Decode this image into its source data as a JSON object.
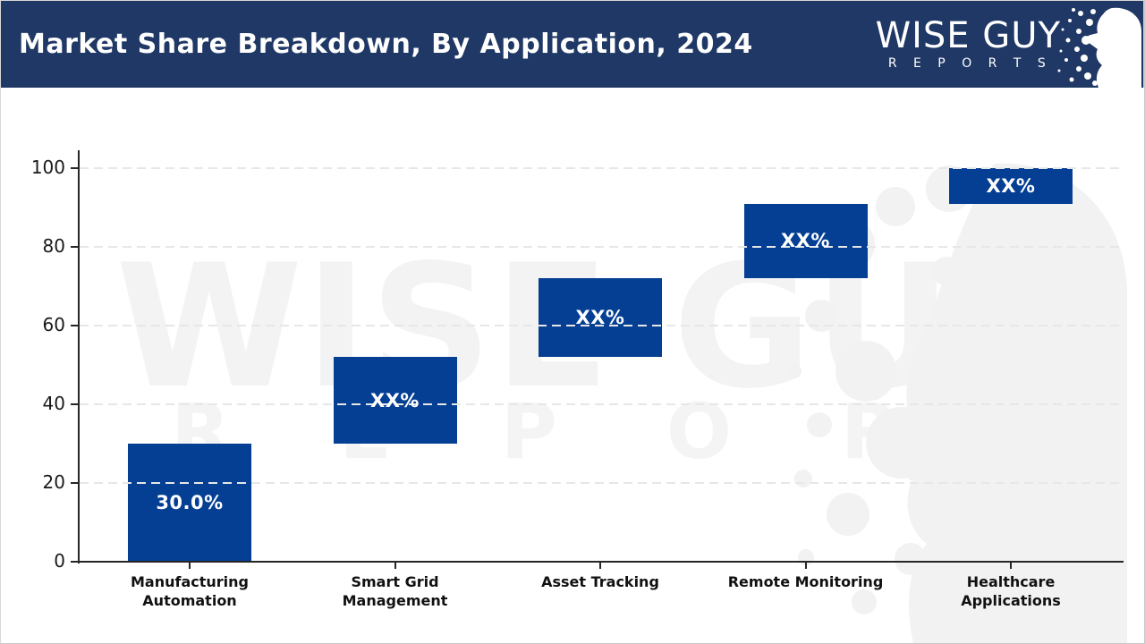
{
  "header": {
    "title": "Market Share Breakdown, By Application, 2024",
    "bg_color": "#1f3865",
    "logo": {
      "line1": "WISE GUY",
      "line2": "R E P O R T S"
    }
  },
  "watermark": {
    "line1": "WISE GUY",
    "line2": "R E P O R T S"
  },
  "chart_data": {
    "type": "bar",
    "subtype": "waterfall",
    "title": "Market Share Breakdown, By Application, 2024",
    "categories": [
      "Manufacturing\nAutomation",
      "Smart Grid\nManagement",
      "Asset Tracking",
      "Remote Monitoring",
      "Healthcare\nApplications"
    ],
    "values": [
      30,
      22,
      20,
      19,
      9
    ],
    "cumulative_start": [
      0,
      30,
      52,
      72,
      91
    ],
    "cumulative_end": [
      30,
      52,
      72,
      91,
      100
    ],
    "bar_labels": [
      "30.0%",
      "XX%",
      "XX%",
      "XX%",
      "XX%"
    ],
    "bar_color": "#053f94",
    "bar_label_color": "#ffffff",
    "yticks": [
      0,
      20,
      40,
      60,
      80,
      100
    ],
    "ylim": [
      0,
      100
    ],
    "xlabel": "",
    "ylabel": "",
    "legend": "none",
    "grid": "horizontal-dashed-over-bars",
    "gridline_color": "#e7e7e7",
    "axis_color": "#262626"
  }
}
